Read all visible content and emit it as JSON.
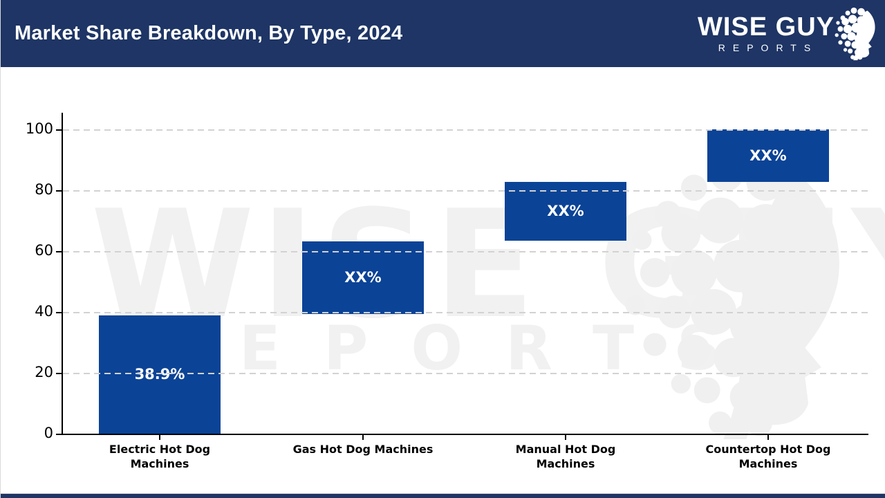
{
  "header": {
    "title": "Market Share Breakdown, By Type, 2024",
    "logo": {
      "line1": "WISE GUY",
      "line2": "REPORTS"
    }
  },
  "watermark": {
    "line1": "WISE GUY",
    "line2": "REPORTS"
  },
  "colors": {
    "header_navy": "#1e3565",
    "bar_blue": "#0b4396",
    "grid_gray": "#d2d2d2",
    "watermark_gray": "#f1f1f2",
    "bar_label_white": "#ffffff"
  },
  "chart_data": {
    "type": "bar",
    "subtype": "waterfall",
    "title": "Market Share Breakdown, By Type, 2024",
    "xlabel": "",
    "ylabel": "",
    "categories": [
      "Electric Hot Dog Machines",
      "Gas Hot Dog Machines",
      "Manual Hot Dog Machines",
      "Countertop Hot Dog Machines"
    ],
    "segments": [
      {
        "label": "38.9%",
        "start": 0,
        "end": 38.9
      },
      {
        "label": "XX%",
        "start": 39.4,
        "end": 63.2
      },
      {
        "label": "XX%",
        "start": 63.5,
        "end": 82.8
      },
      {
        "label": "XX%",
        "start": 82.8,
        "end": 100
      }
    ],
    "yticks": [
      0,
      20,
      40,
      60,
      80,
      100
    ],
    "ylim": [
      0,
      105
    ],
    "grid": "dashed-horizontal-above-bars",
    "legend": "none"
  }
}
